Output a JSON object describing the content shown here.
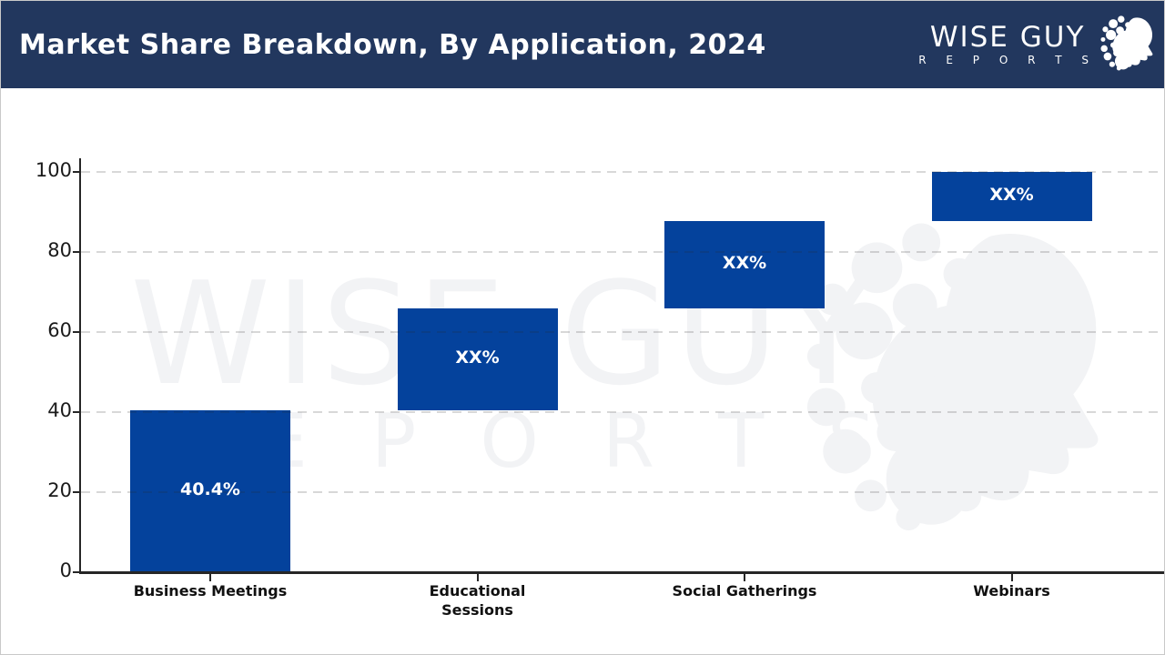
{
  "header": {
    "title": "Market Share Breakdown, By Application, 2024",
    "logo": {
      "line1": "WISE GUY",
      "line2": "R E P O R T S"
    }
  },
  "watermark": {
    "line1": "WISE GUY",
    "line2": "R E P O R T S"
  },
  "chart_data": {
    "type": "bar",
    "subtype": "waterfall",
    "title": "Market Share Breakdown, By Application, 2024",
    "categories": [
      "Business Meetings",
      "Educational\nSessions",
      "Social Gatherings",
      "Webinars"
    ],
    "segments": [
      {
        "category": "Business Meetings",
        "start": 0,
        "end": 40.4,
        "label": "40.4%"
      },
      {
        "category": "Educational Sessions",
        "start": 40.4,
        "end": 66.0,
        "label": "XX%"
      },
      {
        "category": "Social Gatherings",
        "start": 66.0,
        "end": 87.7,
        "label": "XX%"
      },
      {
        "category": "Webinars",
        "start": 87.7,
        "end": 100,
        "label": "XX%"
      }
    ],
    "ylabel": "",
    "xlabel": "",
    "ylim": [
      0,
      100
    ],
    "yticks": [
      0,
      20,
      40,
      60,
      80,
      100
    ],
    "grid": "dashed-horizontal",
    "legend": "none",
    "bar_color": "#04429c",
    "label_color": "#ffffff"
  },
  "colors": {
    "header_bg": "#22375e",
    "bar": "#04429c",
    "watermark": "#f2f3f5",
    "axis": "#262626",
    "frame_border": "#c9c9c9"
  }
}
